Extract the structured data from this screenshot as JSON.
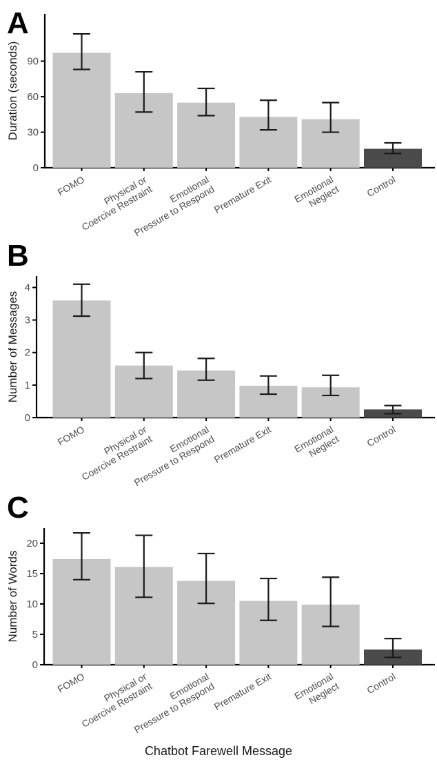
{
  "figure": {
    "xlabel": "Chatbot Farewell Message",
    "panel_letters": [
      "A",
      "B",
      "C"
    ],
    "category_lines": [
      [
        "FOMO"
      ],
      [
        "Physical or",
        "Coercive Restraint"
      ],
      [
        "Emotional",
        "Pressure to Respond"
      ],
      [
        "Premature Exit"
      ],
      [
        "Emotional",
        "Neglect"
      ],
      [
        "Control"
      ]
    ],
    "colors": {
      "bar": "#c6c6c6",
      "control_bar": "#4b4b4b",
      "error_bar": "#1a1a1a",
      "axis": "#000000",
      "tick_text": "#4d4d4d",
      "axis_title_text": "#1a1a1a",
      "panel_letter_text": "#000000",
      "background": "#ffffff"
    }
  },
  "chart_data": [
    {
      "panel": "A",
      "type": "bar",
      "title": "",
      "xlabel": "Chatbot Farewell Message",
      "ylabel": "Duration (seconds)",
      "categories": [
        "FOMO",
        "Physical or Coercive Restraint",
        "Emotional Pressure to Respond",
        "Premature Exit",
        "Emotional Neglect",
        "Control"
      ],
      "values": [
        97,
        63,
        55,
        43,
        41,
        16
      ],
      "error_low": [
        83,
        47,
        44,
        32,
        30,
        12
      ],
      "error_high": [
        113,
        81,
        67,
        57,
        55,
        21
      ],
      "yticks": [
        0,
        30,
        60,
        90
      ],
      "ylim": [
        0,
        130
      ],
      "grid": false,
      "highlight_index": 5
    },
    {
      "panel": "B",
      "type": "bar",
      "title": "",
      "xlabel": "Chatbot Farewell Message",
      "ylabel": "Number of Messages",
      "categories": [
        "FOMO",
        "Physical or Coercive Restraint",
        "Emotional Pressure to Respond",
        "Premature Exit",
        "Emotional Neglect",
        "Control"
      ],
      "values": [
        3.6,
        1.6,
        1.45,
        0.98,
        0.93,
        0.25
      ],
      "error_low": [
        3.12,
        1.2,
        1.15,
        0.72,
        0.68,
        0.12
      ],
      "error_high": [
        4.1,
        2.0,
        1.82,
        1.28,
        1.3,
        0.37
      ],
      "yticks": [
        0,
        1,
        2,
        3,
        4
      ],
      "ylim": [
        0,
        4.35
      ],
      "grid": false,
      "highlight_index": 5
    },
    {
      "panel": "C",
      "type": "bar",
      "title": "",
      "xlabel": "Chatbot Farewell Message",
      "ylabel": "Number of Words",
      "categories": [
        "FOMO",
        "Physical or Coercive Restraint",
        "Emotional Pressure to Respond",
        "Premature Exit",
        "Emotional Neglect",
        "Control"
      ],
      "values": [
        17.4,
        16.1,
        13.8,
        10.5,
        9.9,
        2.5
      ],
      "error_low": [
        14.0,
        11.1,
        10.1,
        7.3,
        6.3,
        1.2
      ],
      "error_high": [
        21.7,
        21.3,
        18.3,
        14.2,
        14.4,
        4.3
      ],
      "yticks": [
        0,
        5,
        10,
        15,
        20
      ],
      "ylim": [
        0,
        22.5
      ],
      "grid": false,
      "highlight_index": 5
    }
  ]
}
